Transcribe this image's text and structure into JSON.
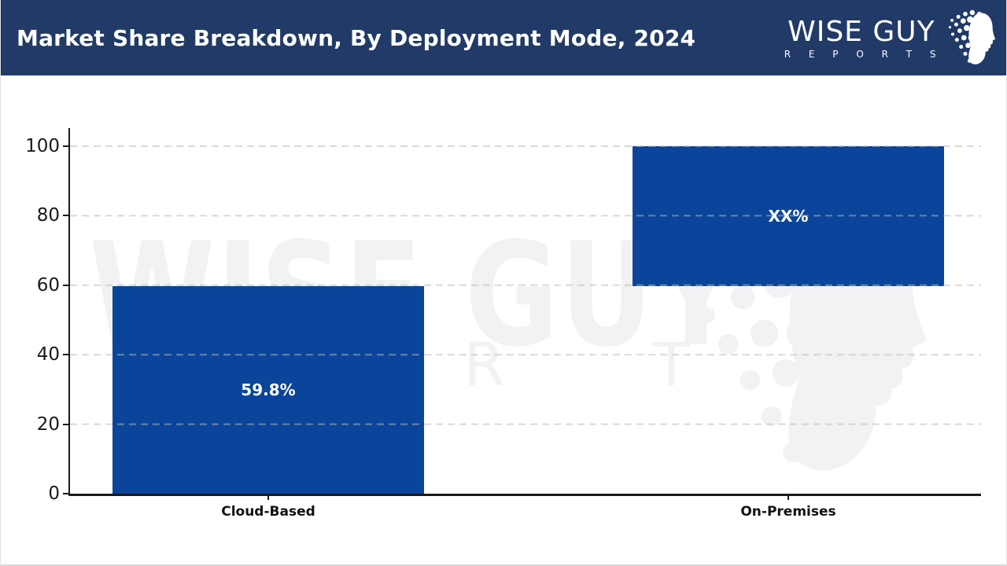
{
  "header": {
    "title": "Market Share Breakdown, By Deployment Mode, 2024",
    "logo": {
      "wordmark": "WISE GUY",
      "subtext": "R E P O R T S"
    }
  },
  "watermark": {
    "wordmark": "WISE GUY",
    "subtext": "R T S"
  },
  "chart_data": {
    "type": "bar",
    "title": "Market Share Breakdown, By Deployment Mode, 2024",
    "categories": [
      "Cloud-Based",
      "On-Premises"
    ],
    "bars": [
      {
        "category": "Cloud-Based",
        "from": 0,
        "to": 59.8,
        "label": "59.8%"
      },
      {
        "category": "On-Premises",
        "from": 59.8,
        "to": 100,
        "label": "XX%"
      }
    ],
    "ylim": [
      0,
      100
    ],
    "yticks": [
      0,
      20,
      40,
      60,
      80,
      100
    ],
    "grid": "horizontal dashed",
    "legend": "none",
    "bar_color": "#0a459b",
    "xlabel": "",
    "ylabel": ""
  },
  "colors": {
    "header_bg": "#213a67",
    "bar": "#0a459b",
    "page_bg": "#ffffff",
    "gridline": "#bbbbbb",
    "axis": "#1a1a1a",
    "watermark": "#f2f2f4",
    "title_text": "#ffffff"
  }
}
